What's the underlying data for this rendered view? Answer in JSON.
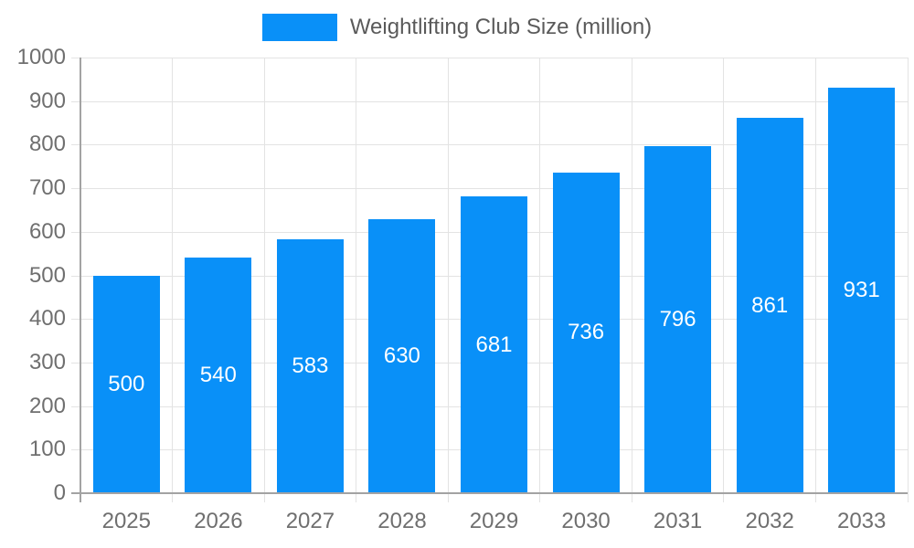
{
  "chart": {
    "colors": {
      "bar": "#0990f8",
      "grid": "#e3e3e3",
      "axis": "#a3a3a3",
      "tick_text": "#6f6f6f",
      "legend_text": "#5a5a5a",
      "value_label": "#ffffff",
      "background": "#ffffff"
    }
  },
  "chart_data": {
    "type": "bar",
    "title": "Weightlifting Club Size (million)",
    "series_name": "Weightlifting Club Size (million)",
    "categories": [
      "2025",
      "2026",
      "2027",
      "2028",
      "2029",
      "2030",
      "2031",
      "2032",
      "2033"
    ],
    "values": [
      500,
      540,
      583,
      630,
      681,
      736,
      796,
      861,
      931
    ],
    "xlabel": "",
    "ylabel": "",
    "ylim": [
      0,
      1000
    ],
    "ytick_step": 100,
    "ytick_labels": [
      "0",
      "100",
      "200",
      "300",
      "400",
      "500",
      "600",
      "700",
      "800",
      "900",
      "1000"
    ],
    "grid": true,
    "legend_position": "top",
    "value_labels": "inside-center-white"
  }
}
